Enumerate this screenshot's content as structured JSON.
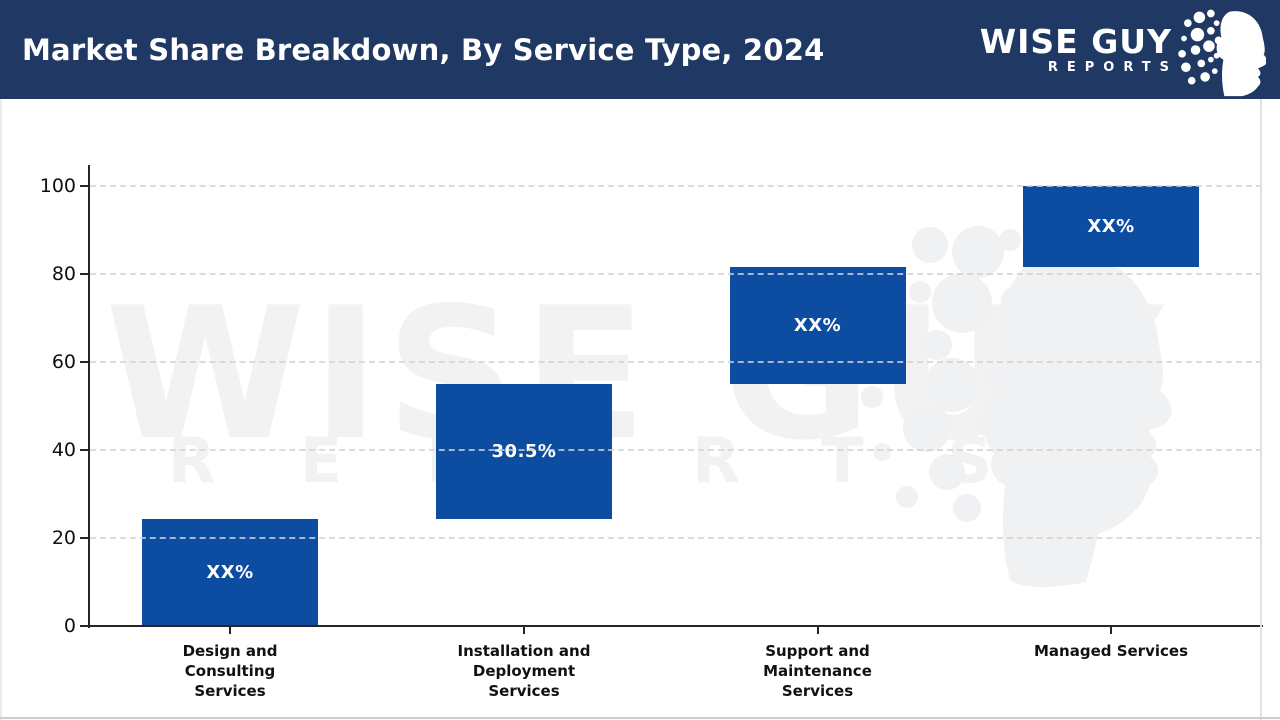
{
  "header": {
    "title": "Market Share Breakdown, By Service Type, 2024",
    "logo": {
      "line1": "WISE GUY",
      "line2": "REPORTS"
    }
  },
  "watermark": {
    "line1": "WISE GUY",
    "line2": "REPORTS"
  },
  "colors": {
    "header_bg": "#1f3864",
    "bar": "#0d4da1",
    "grid": "#d9d9d9",
    "axis": "#262626",
    "watermark": "#f2f2f3",
    "bar_label": "#ffffff"
  },
  "chart_data": {
    "type": "bar",
    "subtype": "waterfall",
    "title": "Market Share Breakdown, By Service Type, 2024",
    "categories": [
      "Design and Consulting Services",
      "Installation and Deployment Services",
      "Support and Maintenance Services",
      "Managed Services"
    ],
    "category_label_lines": [
      [
        "Design and",
        "Consulting",
        "Services"
      ],
      [
        "Installation and",
        "Deployment",
        "Services"
      ],
      [
        "Support and",
        "Maintenance",
        "Services"
      ],
      [
        "Managed Services"
      ]
    ],
    "bars": [
      {
        "value_label": "XX%",
        "start": 0,
        "end": 24.4
      },
      {
        "value_label": "30.5%",
        "start": 24.4,
        "end": 54.9
      },
      {
        "value_label": "XX%",
        "start": 54.9,
        "end": 81.7
      },
      {
        "value_label": "XX%",
        "start": 81.7,
        "end": 100
      }
    ],
    "yticks": [
      0,
      20,
      40,
      60,
      80,
      100
    ],
    "ylim": [
      0,
      105
    ],
    "xlabel": "",
    "ylabel": "",
    "grid": true,
    "gridline_style": "dashed",
    "legend": null,
    "bar_color": "#0d4da1",
    "value_label_color": "#ffffff"
  }
}
